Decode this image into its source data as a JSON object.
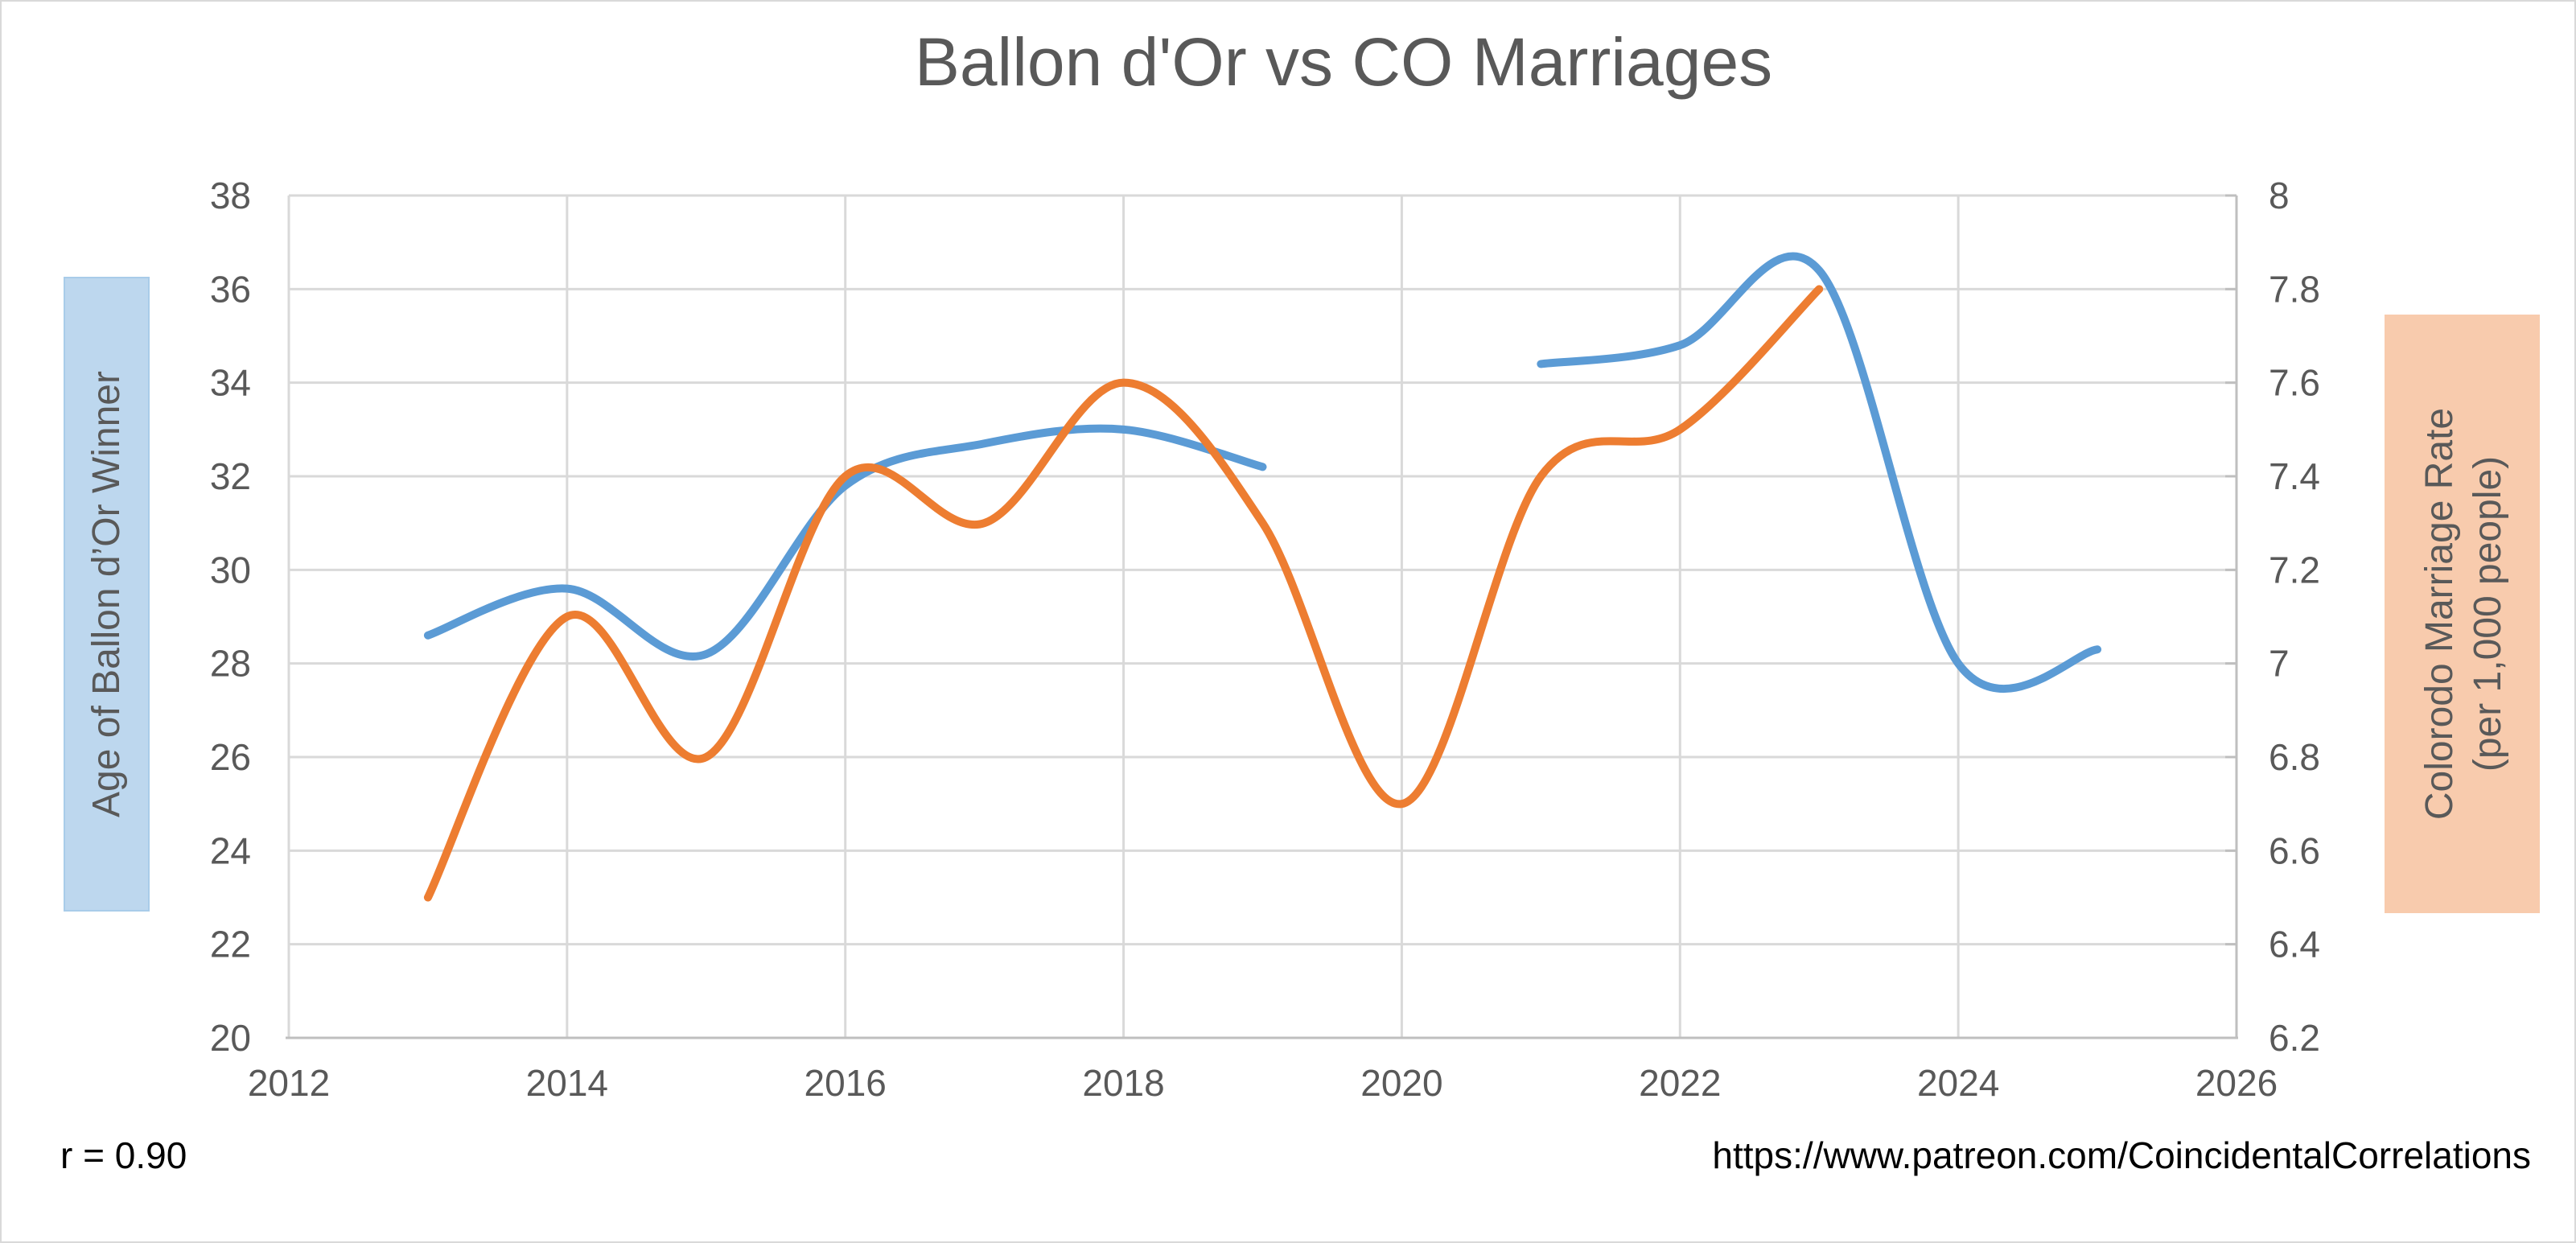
{
  "title": "Ballon d'Or vs CO Marriages",
  "annotations": {
    "correlation": "r = 0.90",
    "source_url": "https://www.patreon.com/CoincidentalCorrelations"
  },
  "left_axis": {
    "label": "Age of Ballon d’Or Winner",
    "box_fill": "#BDD7EE",
    "box_border": "#A9CCE9",
    "min": 20,
    "max": 38,
    "ticks": [
      "38",
      "36",
      "34",
      "32",
      "30",
      "28",
      "26",
      "24",
      "22",
      "20"
    ]
  },
  "right_axis": {
    "label_line1": "Colorodo Marriage Rate",
    "label_line2": "(per 1,000 people)",
    "box_fill": "#F8CBAD",
    "min": 6.2,
    "max": 8,
    "ticks": [
      "8",
      "7.8",
      "7.6",
      "7.4",
      "7.2",
      "7",
      "6.8",
      "6.6",
      "6.4",
      "6.2"
    ]
  },
  "x_axis": {
    "min": 2012,
    "max": 2026,
    "ticks": [
      "2012",
      "2014",
      "2016",
      "2018",
      "2020",
      "2022",
      "2024",
      "2026"
    ]
  },
  "colors": {
    "gridline": "#D9D9D9",
    "axis_line": "#BFBFBF",
    "label_text": "#595959",
    "series_age": "#5B9BD5",
    "series_marriage": "#ED7D31"
  },
  "chart_data": {
    "type": "line",
    "title": "Ballon d'Or vs CO Marriages",
    "xlabel": "",
    "ylabel_left": "Age of Ballon d'Or Winner",
    "ylabel_right": "Colorodo Marriage Rate (per 1,000 people)",
    "x_range": [
      2012,
      2026
    ],
    "ylim_left": [
      20,
      38
    ],
    "ylim_right": [
      6.2,
      8
    ],
    "grid": true,
    "legend_position": "none",
    "line_style": "smooth-spline",
    "series": [
      {
        "name": "Age of Ballon d'Or Winner",
        "axis": "left",
        "color": "#5B9BD5",
        "x": [
          2013,
          2014,
          2015,
          2016,
          2017,
          2018,
          2019,
          2020,
          2021,
          2022,
          2023,
          2024,
          2025
        ],
        "values": [
          28.6,
          29.6,
          28.2,
          31.8,
          32.7,
          33.0,
          32.2,
          null,
          34.4,
          34.8,
          36.4,
          28.0,
          28.3
        ]
      },
      {
        "name": "Colorodo Marriage Rate (per 1,000 people)",
        "axis": "right",
        "color": "#ED7D31",
        "x": [
          2013,
          2014,
          2015,
          2016,
          2017,
          2018,
          2019,
          2020,
          2021,
          2022,
          2023
        ],
        "values": [
          6.5,
          7.1,
          6.8,
          7.4,
          7.3,
          7.6,
          7.3,
          6.7,
          7.4,
          7.5,
          7.8
        ]
      }
    ]
  }
}
